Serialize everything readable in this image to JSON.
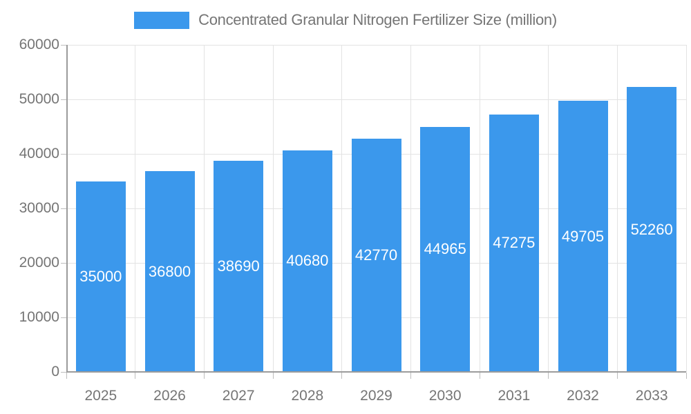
{
  "legend": {
    "label": "Concentrated Granular Nitrogen Fertilizer Size (million)"
  },
  "colors": {
    "bar": "#3b98ec",
    "value_label": "#ffffff",
    "axis_label": "#757575",
    "gridline": "#e3e3e3",
    "axis_line": "#9b9b9b"
  },
  "chart_data": {
    "type": "bar",
    "title": "Concentrated Granular Nitrogen Fertilizer Size (million)",
    "categories": [
      "2025",
      "2026",
      "2027",
      "2028",
      "2029",
      "2030",
      "2031",
      "2032",
      "2033"
    ],
    "values": [
      35000,
      36800,
      38690,
      40680,
      42770,
      44965,
      47275,
      49705,
      52260
    ],
    "value_labels": [
      "35000",
      "36800",
      "38690",
      "40680",
      "42770",
      "44965",
      "47275",
      "49705",
      "52260"
    ],
    "xlabel": "",
    "ylabel": "",
    "ylim": [
      0,
      60000
    ],
    "ytick_step": 10000,
    "ytick_labels": [
      "0",
      "10000",
      "20000",
      "30000",
      "40000",
      "50000",
      "60000"
    ],
    "grid": true,
    "legend_position": "top",
    "value_label_position": "inside-center"
  }
}
